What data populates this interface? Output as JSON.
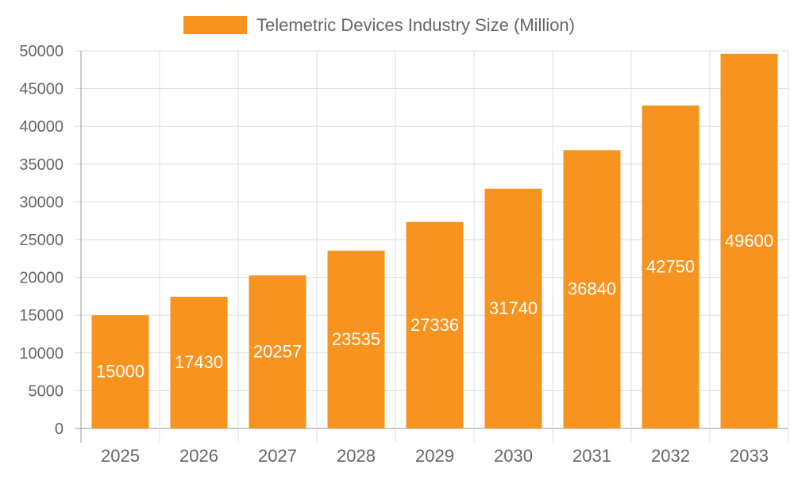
{
  "chart_data": {
    "type": "bar",
    "categories": [
      "2025",
      "2026",
      "2027",
      "2028",
      "2029",
      "2030",
      "2031",
      "2032",
      "2033"
    ],
    "series": [
      {
        "name": "Telemetric Devices Industry Size (Million)",
        "values": [
          15000,
          17430,
          20257,
          23535,
          27336,
          31740,
          36840,
          42750,
          49600
        ],
        "color": "#f7941f"
      }
    ],
    "ylim": [
      0,
      50000
    ],
    "yticks": [
      0,
      5000,
      10000,
      15000,
      20000,
      25000,
      30000,
      35000,
      40000,
      45000,
      50000
    ],
    "grid": true,
    "legend": "top",
    "data_labels": true,
    "title": "",
    "xlabel": "",
    "ylabel": ""
  }
}
